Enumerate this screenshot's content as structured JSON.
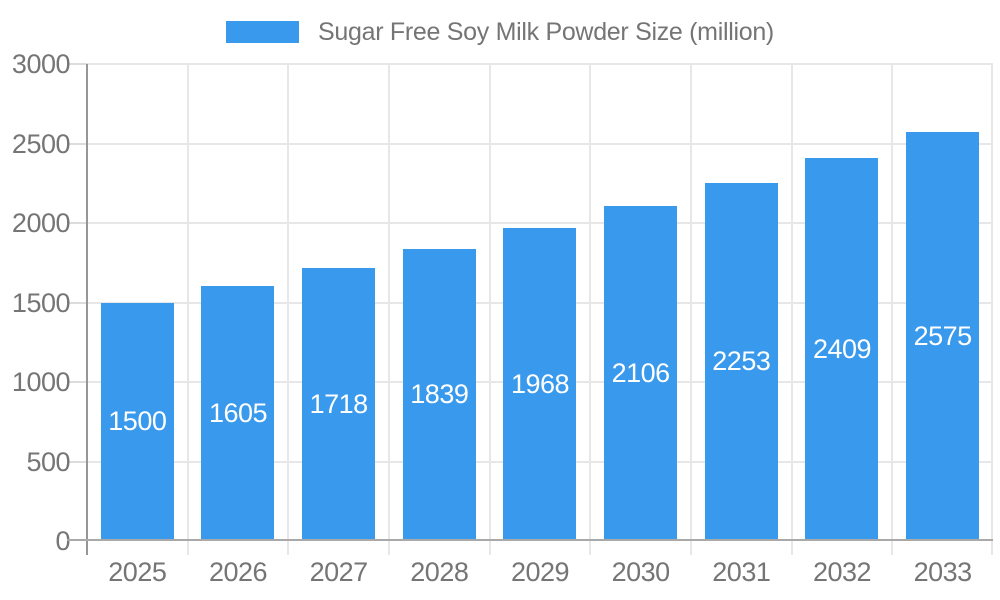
{
  "legend": {
    "label": "Sugar Free Soy Milk Powder Size (million)",
    "position": "top"
  },
  "colors": {
    "bar": "#3999EC",
    "axis_text": "#757575",
    "value_label_text": "#ffffff",
    "grid_line": "#e7e7e7",
    "axis_line": "#969696",
    "background": "#ffffff"
  },
  "chart_data": {
    "type": "bar",
    "title": "Sugar Free Soy Milk Powder Size (million)",
    "categories": [
      "2025",
      "2026",
      "2027",
      "2028",
      "2029",
      "2030",
      "2031",
      "2032",
      "2033"
    ],
    "values": [
      1500,
      1605,
      1718,
      1839,
      1968,
      2106,
      2253,
      2409,
      2575
    ],
    "series": [
      {
        "name": "Sugar Free Soy Milk Powder Size (million)",
        "values": [
          1500,
          1605,
          1718,
          1839,
          1968,
          2106,
          2253,
          2409,
          2575
        ]
      }
    ],
    "xlabel": "",
    "ylabel": "",
    "ylim": [
      0,
      3000
    ],
    "ytick_step": 500,
    "ytick_labels_top_to_bottom": [
      "3000",
      "2500",
      "2000",
      "1500",
      "1000",
      "500",
      "0"
    ],
    "grid": true,
    "legend_position": "top-center",
    "value_labels": "inside-center, white"
  }
}
